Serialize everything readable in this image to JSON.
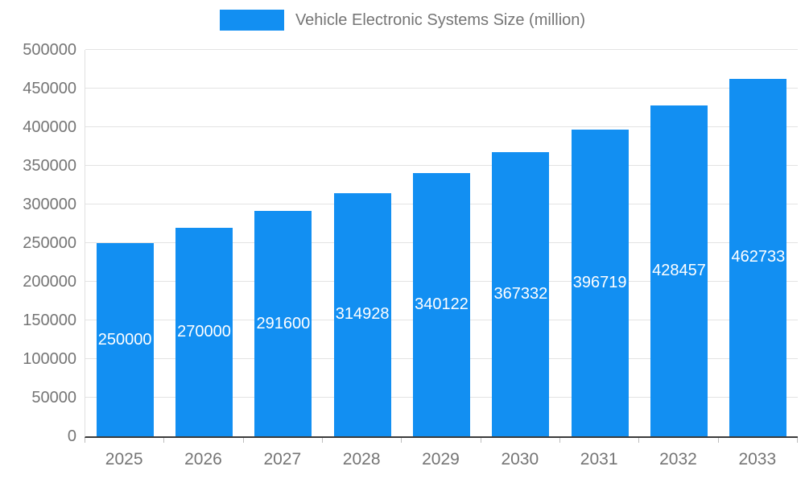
{
  "chart_data": {
    "type": "bar",
    "title": "Vehicle Electronic Systems Size (million)",
    "categories": [
      "2025",
      "2026",
      "2027",
      "2028",
      "2029",
      "2030",
      "2031",
      "2032",
      "2033"
    ],
    "values": [
      250000,
      270000,
      291600,
      314928,
      340122,
      367332,
      396719,
      428457,
      462733
    ],
    "value_labels": [
      "250000",
      "270000",
      "291600",
      "314928",
      "340122",
      "367332",
      "396719",
      "428457",
      "462733"
    ],
    "ylim": [
      0,
      500000
    ],
    "ytick_step": 50000,
    "ytick_labels": [
      "0",
      "50000",
      "100000",
      "150000",
      "200000",
      "250000",
      "300000",
      "350000",
      "400000",
      "450000",
      "500000"
    ],
    "xlabel": "",
    "ylabel": "",
    "legend_position": "top",
    "grid": "horizontal",
    "bar_color": "#128ff2",
    "bar_value_label_color": "#ffffff",
    "axis_text_color": "#757575",
    "grid_color": "#e3e3e3",
    "baseline_color": "#3b3b3b"
  }
}
